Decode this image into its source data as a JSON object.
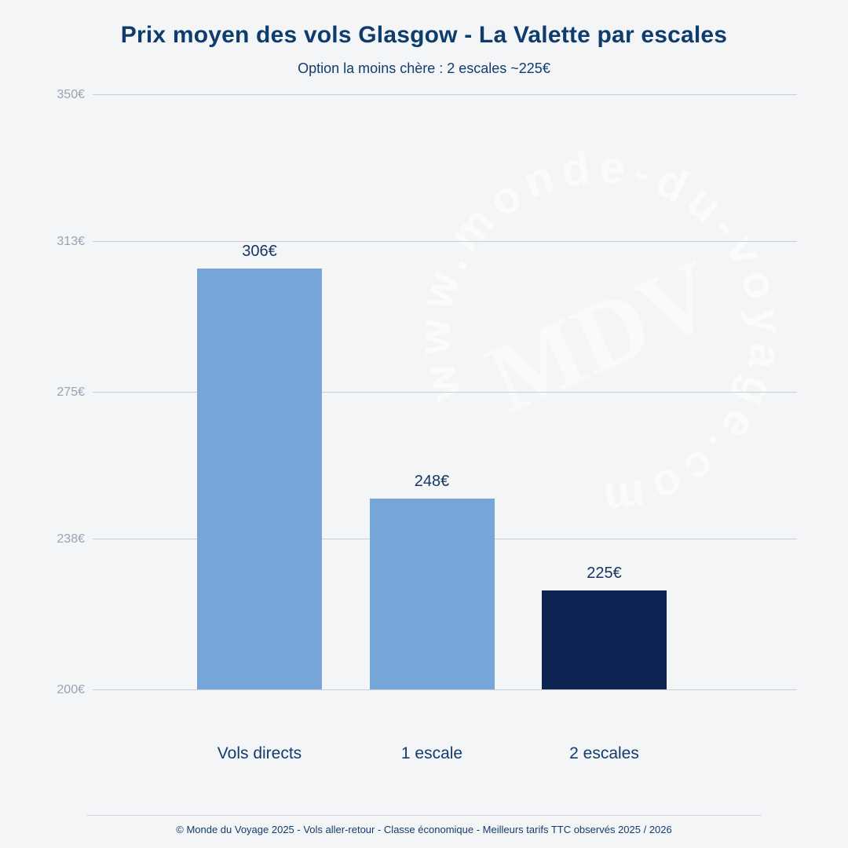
{
  "chart_data": {
    "type": "bar",
    "title": "Prix moyen des vols Glasgow - La Valette par escales",
    "subtitle": "Option la moins chère : 2 escales ~225€",
    "categories": [
      "Vols directs",
      "1 escale",
      "2 escales"
    ],
    "values": [
      306,
      248,
      225
    ],
    "value_labels": [
      "306€",
      "248€",
      "225€"
    ],
    "unit": "€",
    "ylim": [
      200,
      350
    ],
    "yticks": [
      350,
      313,
      275,
      238,
      200
    ],
    "ytick_labels": [
      "350€",
      "313€",
      "275€",
      "238€",
      "200€"
    ],
    "bar_colors": [
      "#76a5d8",
      "#76a5d8",
      "#0d2452"
    ],
    "grid": true,
    "legend": "none",
    "xlabel": "",
    "ylabel": ""
  },
  "watermark": {
    "ring_text": "www.monde-du-voyage.com",
    "center_text": "MDV"
  },
  "footer": {
    "text": "© Monde du Voyage 2025 - Vols aller-retour - Classe économique - Meilleurs tarifs TTC observés 2025 / 2026"
  },
  "colors": {
    "background": "#f4f5f7",
    "title": "#0e3d6d",
    "subtitle": "#123c6d",
    "tick_label": "#9aa3b4",
    "gridline": "#c9cdd9",
    "value_label": "#16355f",
    "category_label": "#123c6d",
    "footer_text": "#123c6d",
    "bar_light": "#76a5d8",
    "bar_dark": "#0d2452",
    "watermark": "#ffffff"
  }
}
